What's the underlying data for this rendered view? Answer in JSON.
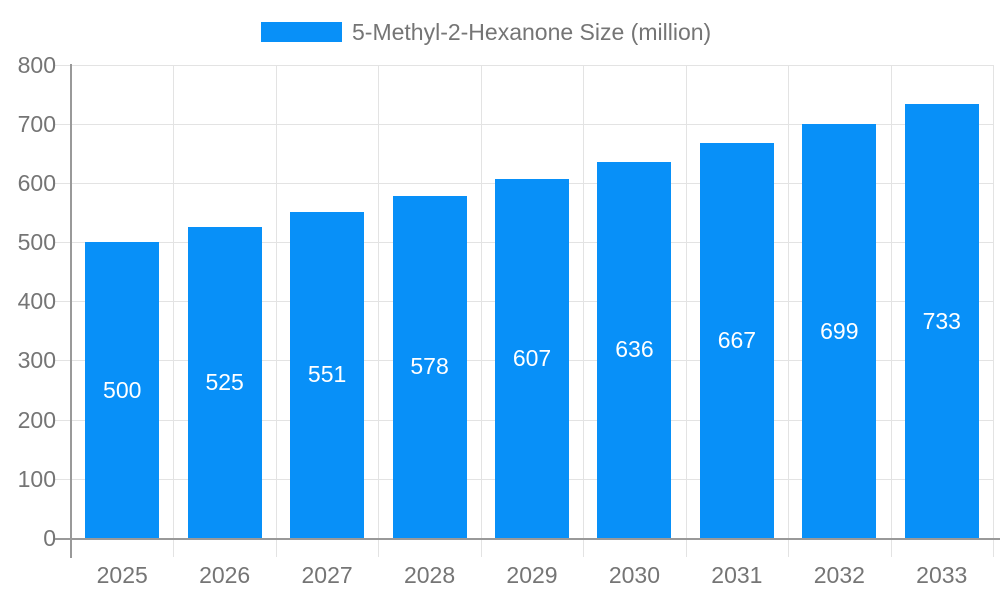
{
  "legend": {
    "label": "5-Methyl-2-Hexanone Size (million)"
  },
  "chart_data": {
    "type": "bar",
    "title": "5-Methyl-2-Hexanone Size (million)",
    "categories": [
      "2025",
      "2026",
      "2027",
      "2028",
      "2029",
      "2030",
      "2031",
      "2032",
      "2033"
    ],
    "series": [
      {
        "name": "5-Methyl-2-Hexanone Size (million)",
        "values": [
          500,
          525,
          551,
          578,
          607,
          636,
          667,
          699,
          733
        ]
      }
    ],
    "values": [
      500,
      525,
      551,
      578,
      607,
      636,
      667,
      699,
      733
    ],
    "bar_labels": [
      "500",
      "525",
      "551",
      "578",
      "607",
      "636",
      "667",
      "699",
      "733"
    ],
    "xlabel": "",
    "ylabel": "",
    "ylim": [
      0,
      800
    ],
    "yticks": [
      0,
      100,
      200,
      300,
      400,
      500,
      600,
      700,
      800
    ],
    "grid": true,
    "legend_position": "top-center",
    "bar_label_position": "inside-middle",
    "colors": {
      "bar": "#0890F8",
      "bar_label": "#FFFFFF",
      "axis_text": "#757575",
      "axis_line": "#999999",
      "gridline": "#E3E3E3",
      "background": "#FFFFFF"
    }
  }
}
